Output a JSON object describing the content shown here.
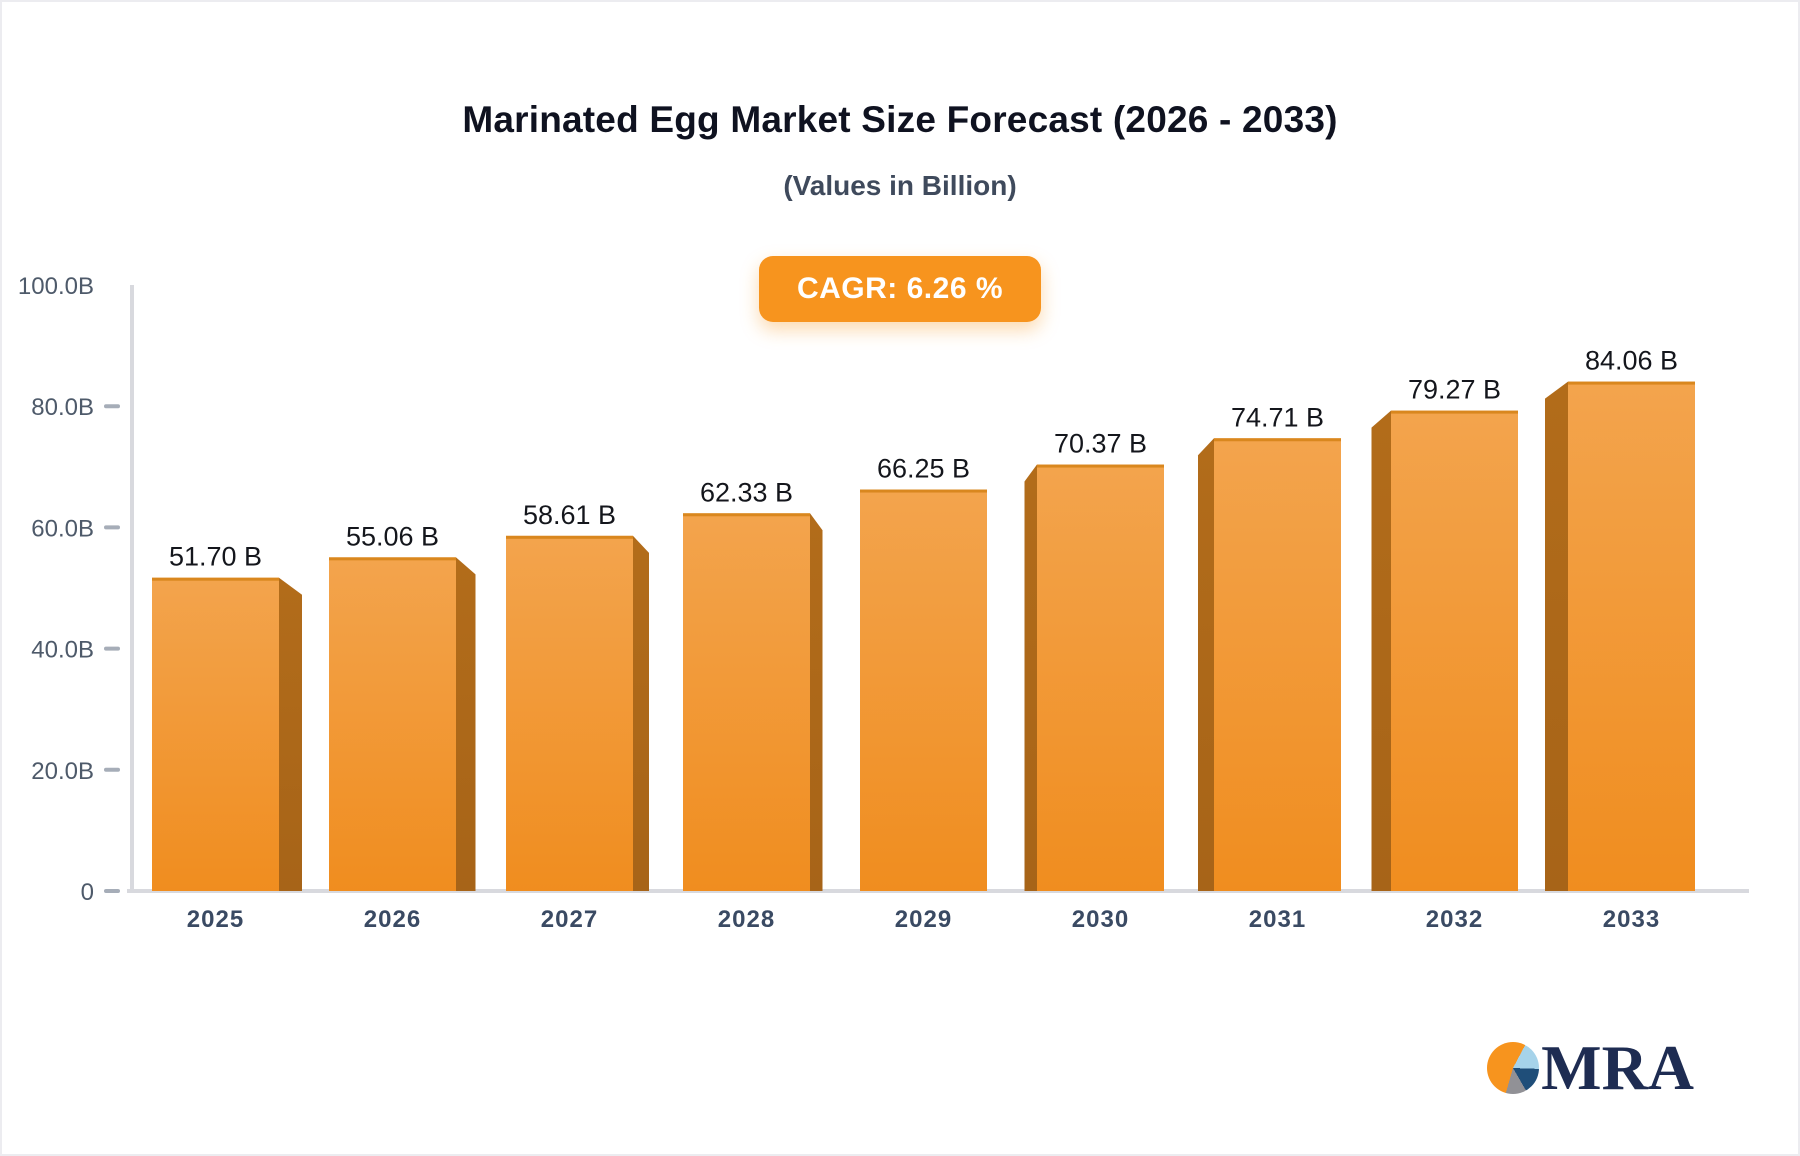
{
  "header": {
    "title": "Marinated Egg Market Size Forecast (2026 - 2033)",
    "subtitle": "(Values in Billion)",
    "cagr_badge": "CAGR: 6.26 %"
  },
  "chart_data": {
    "type": "bar",
    "title": "Marinated Egg Market Size Forecast (2026 - 2033)",
    "subtitle": "(Values in Billion)",
    "cagr_percent": 6.26,
    "categories": [
      "2025",
      "2026",
      "2027",
      "2028",
      "2029",
      "2030",
      "2031",
      "2032",
      "2033"
    ],
    "values": [
      51.7,
      55.06,
      58.61,
      62.33,
      66.25,
      70.37,
      74.71,
      79.27,
      84.06
    ],
    "value_labels": [
      "51.70 B",
      "55.06 B",
      "58.61 B",
      "62.33 B",
      "66.25 B",
      "70.37 B",
      "74.71 B",
      "79.27 B",
      "84.06 B"
    ],
    "xlabel": "",
    "ylabel": "",
    "ylim": [
      0,
      100
    ],
    "yticks": [
      {
        "value": 0,
        "label": "0",
        "dash": true
      },
      {
        "value": 20,
        "label": "20.0B",
        "dash": true
      },
      {
        "value": 40,
        "label": "40.0B",
        "dash": true
      },
      {
        "value": 60,
        "label": "60.0B",
        "dash": true
      },
      {
        "value": 80,
        "label": "80.0B",
        "dash": true
      },
      {
        "value": 100,
        "label": "100.0B",
        "dash": false
      }
    ],
    "grid": false,
    "legend": false,
    "style": "3d-perspective-bars",
    "colors": {
      "bar_face_top": "#f3a44d",
      "bar_face_bottom": "#f08d1f",
      "bar_side": "#b26c1a",
      "bar_side_dark": "#a76418",
      "bar_top_edge": "#d9871e",
      "badge_bg": "#f7941e",
      "badge_text": "#ffffff",
      "axis_line": "#d8d9de",
      "tick_dash": "#a6adb8",
      "y_label_text": "#4e5a6a",
      "x_label_text": "#3a4a63",
      "value_label_text": "#14161c",
      "title_text": "#0f1220",
      "subtitle_text": "#3f4a5c"
    }
  },
  "logo": {
    "text": "MRA",
    "pie_slice_colors": [
      "#f7941e",
      "#a6d3ea",
      "#1f4e79",
      "#919196"
    ]
  }
}
